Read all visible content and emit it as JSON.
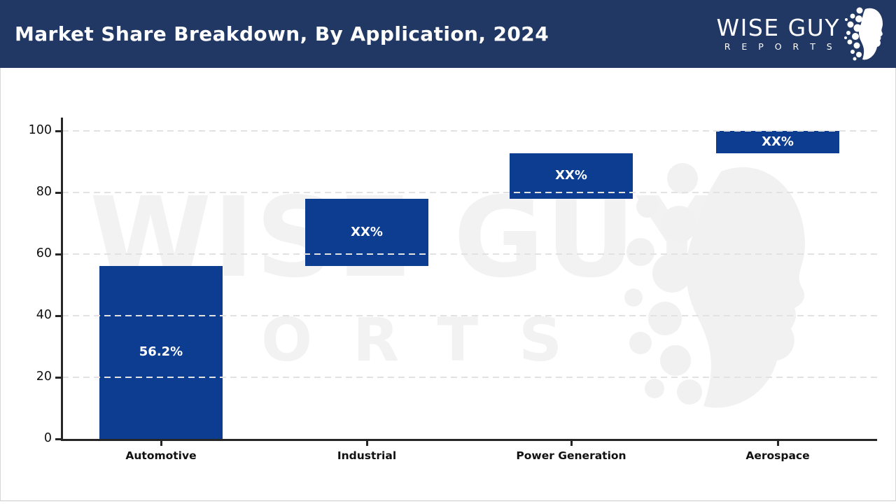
{
  "page": {
    "background": "#ffffff",
    "frame_border": "#cccccc"
  },
  "header": {
    "background": "#213864",
    "title": "Market Share Breakdown, By Application, 2024",
    "title_color": "#ffffff",
    "logo": {
      "wordmark": "WISE GUY",
      "subtext": "R E P O R T S",
      "color": "#ffffff"
    }
  },
  "watermark": {
    "wordmark": "WISE GUY",
    "subtext": "PORTS",
    "color": "#f2f2f2"
  },
  "chart_data": {
    "type": "bar",
    "subtype": "waterfall",
    "title": "Market Share Breakdown, By Application, 2024",
    "xlabel": "",
    "ylabel": "",
    "categories": [
      "Automotive",
      "Industrial",
      "Power Generation",
      "Aerospace"
    ],
    "segments": [
      {
        "category": "Automotive",
        "start": 0,
        "end": 56.2,
        "label": "56.2%"
      },
      {
        "category": "Industrial",
        "start": 56.2,
        "end": 78,
        "label": "XX%"
      },
      {
        "category": "Power Generation",
        "start": 78,
        "end": 92.7,
        "label": "XX%"
      },
      {
        "category": "Aerospace",
        "start": 92.7,
        "end": 100,
        "label": "XX%"
      }
    ],
    "yticks": [
      0,
      20,
      40,
      60,
      80,
      100
    ],
    "ylim": [
      0,
      105
    ],
    "grid": {
      "style": "dashed",
      "color": "#e2e2e2",
      "on": true
    },
    "legend": "none",
    "bar_color": "#0c3d91",
    "bar_label_color": "#ffffff",
    "axis_color": "#262626",
    "tick_label_color": "#111111"
  }
}
